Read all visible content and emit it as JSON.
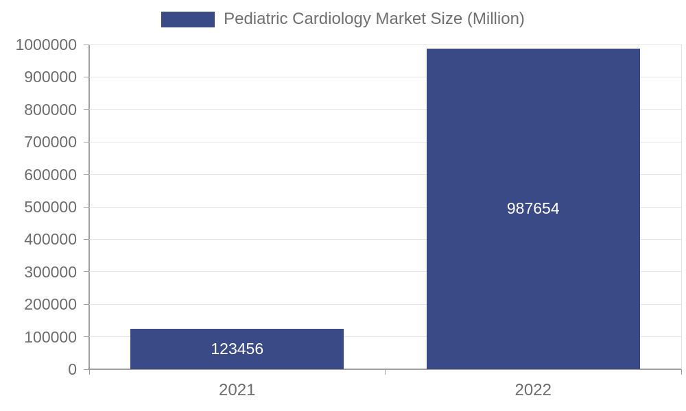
{
  "chart_data": {
    "type": "bar",
    "title": "Pediatric Cardiology Market Size (Million)",
    "series_name": "Pediatric Cardiology Market Size (Million)",
    "categories": [
      "2021",
      "2022"
    ],
    "values": [
      123456,
      987654
    ],
    "value_labels": [
      "123456",
      "987654"
    ],
    "xlabel": "",
    "ylabel": "",
    "ylim": [
      0,
      1000000
    ],
    "y_tick_step": 100000,
    "y_tick_labels": [
      "0",
      "100000",
      "200000",
      "300000",
      "400000",
      "500000",
      "600000",
      "700000",
      "800000",
      "900000",
      "1000000"
    ],
    "grid": true,
    "legend_position": "top-center",
    "value_labels_inside_bars": true
  },
  "legend": {
    "label": "Pediatric Cardiology Market Size (Million)"
  },
  "colors": {
    "bar": "#3A4A86",
    "value_label": "#FFFFFF",
    "axis_label": "#6E6E6E",
    "legend_text": "#707070",
    "gridline": "#E4E4E4",
    "axis_line": "#A0A0A0",
    "background": "#FFFFFF"
  }
}
